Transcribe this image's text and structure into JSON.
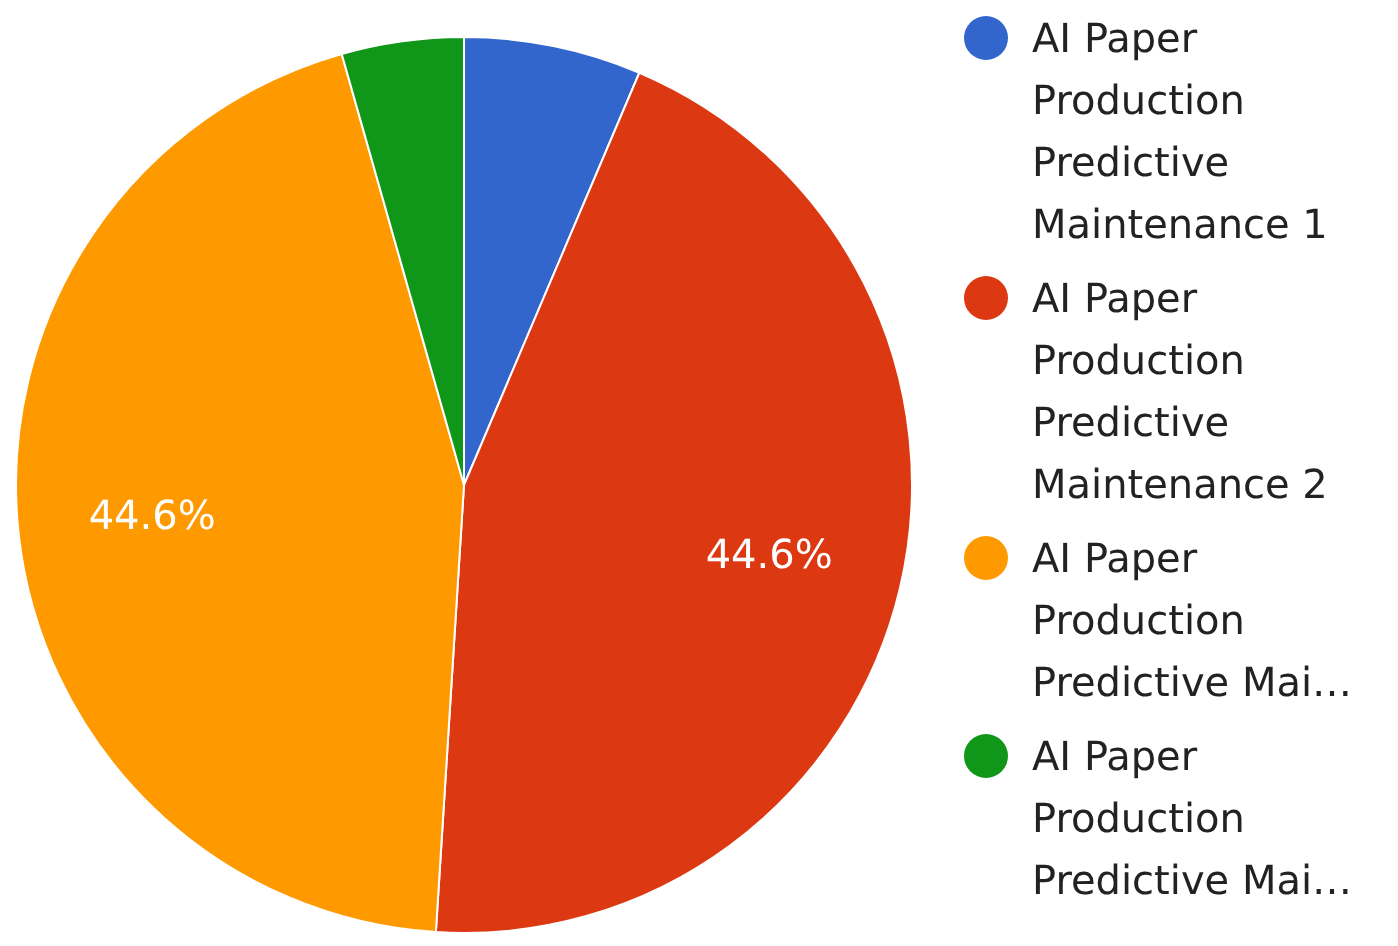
{
  "chart_data": {
    "type": "pie",
    "categories": [
      "AI Paper Production Predictive Maintenance 1",
      "AI Paper Production Predictive Maintenance 2",
      "AI Paper Production Predictive Mai…",
      "AI Paper Production Predictive Mai…"
    ],
    "values": [
      6.4,
      44.6,
      44.6,
      4.4
    ],
    "colors": [
      "#3366cc",
      "#dc3912",
      "#ff9900",
      "#109618"
    ],
    "value_labels": [
      null,
      "44.6%",
      "44.6%",
      null
    ],
    "legend": "right"
  }
}
